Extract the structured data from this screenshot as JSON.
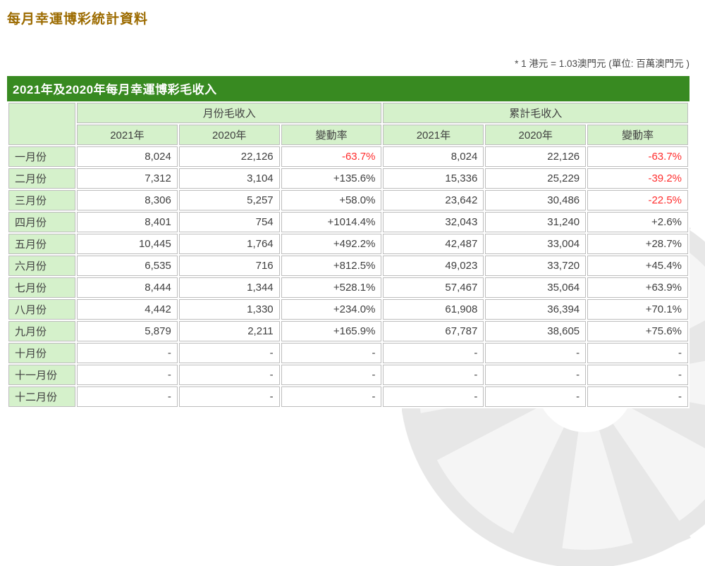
{
  "page_title": "每月幸運博彩統計資料",
  "note": "* 1 港元 = 1.03澳門元 (單位: 百萬澳門元 )",
  "colors": {
    "header_green": "#388a21",
    "cell_green": "#d5f1cb",
    "title_brown": "#9c6b00",
    "negative_red": "#ff2d2d"
  },
  "table": {
    "caption": "2021年及2020年每月幸運博彩毛收入",
    "group_headers": {
      "monthly": "月份毛收入",
      "cumulative": "累計毛收入"
    },
    "sub_headers": {
      "monthly_2021": "2021年",
      "monthly_2020": "2020年",
      "monthly_change": "變動率",
      "cum_2021": "2021年",
      "cum_2020": "2020年",
      "cum_change": "變動率"
    },
    "rows": [
      {
        "month": "一月份",
        "monthly_2021": "8,024",
        "monthly_2020": "22,126",
        "monthly_change": "-63.7%",
        "cum_2021": "8,024",
        "cum_2020": "22,126",
        "cum_change": "-63.7%"
      },
      {
        "month": "二月份",
        "monthly_2021": "7,312",
        "monthly_2020": "3,104",
        "monthly_change": "+135.6%",
        "cum_2021": "15,336",
        "cum_2020": "25,229",
        "cum_change": "-39.2%"
      },
      {
        "month": "三月份",
        "monthly_2021": "8,306",
        "monthly_2020": "5,257",
        "monthly_change": "+58.0%",
        "cum_2021": "23,642",
        "cum_2020": "30,486",
        "cum_change": "-22.5%"
      },
      {
        "month": "四月份",
        "monthly_2021": "8,401",
        "monthly_2020": "754",
        "monthly_change": "+1014.4%",
        "cum_2021": "32,043",
        "cum_2020": "31,240",
        "cum_change": "+2.6%"
      },
      {
        "month": "五月份",
        "monthly_2021": "10,445",
        "monthly_2020": "1,764",
        "monthly_change": "+492.2%",
        "cum_2021": "42,487",
        "cum_2020": "33,004",
        "cum_change": "+28.7%"
      },
      {
        "month": "六月份",
        "monthly_2021": "6,535",
        "monthly_2020": "716",
        "monthly_change": "+812.5%",
        "cum_2021": "49,023",
        "cum_2020": "33,720",
        "cum_change": "+45.4%"
      },
      {
        "month": "七月份",
        "monthly_2021": "8,444",
        "monthly_2020": "1,344",
        "monthly_change": "+528.1%",
        "cum_2021": "57,467",
        "cum_2020": "35,064",
        "cum_change": "+63.9%"
      },
      {
        "month": "八月份",
        "monthly_2021": "4,442",
        "monthly_2020": "1,330",
        "monthly_change": "+234.0%",
        "cum_2021": "61,908",
        "cum_2020": "36,394",
        "cum_change": "+70.1%"
      },
      {
        "month": "九月份",
        "monthly_2021": "5,879",
        "monthly_2020": "2,211",
        "monthly_change": "+165.9%",
        "cum_2021": "67,787",
        "cum_2020": "38,605",
        "cum_change": "+75.6%"
      },
      {
        "month": "十月份",
        "monthly_2021": "-",
        "monthly_2020": "-",
        "monthly_change": "-",
        "cum_2021": "-",
        "cum_2020": "-",
        "cum_change": "-"
      },
      {
        "month": "十一月份",
        "monthly_2021": "-",
        "monthly_2020": "-",
        "monthly_change": "-",
        "cum_2021": "-",
        "cum_2020": "-",
        "cum_change": "-"
      },
      {
        "month": "十二月份",
        "monthly_2021": "-",
        "monthly_2020": "-",
        "monthly_change": "-",
        "cum_2021": "-",
        "cum_2020": "-",
        "cum_change": "-"
      }
    ]
  }
}
